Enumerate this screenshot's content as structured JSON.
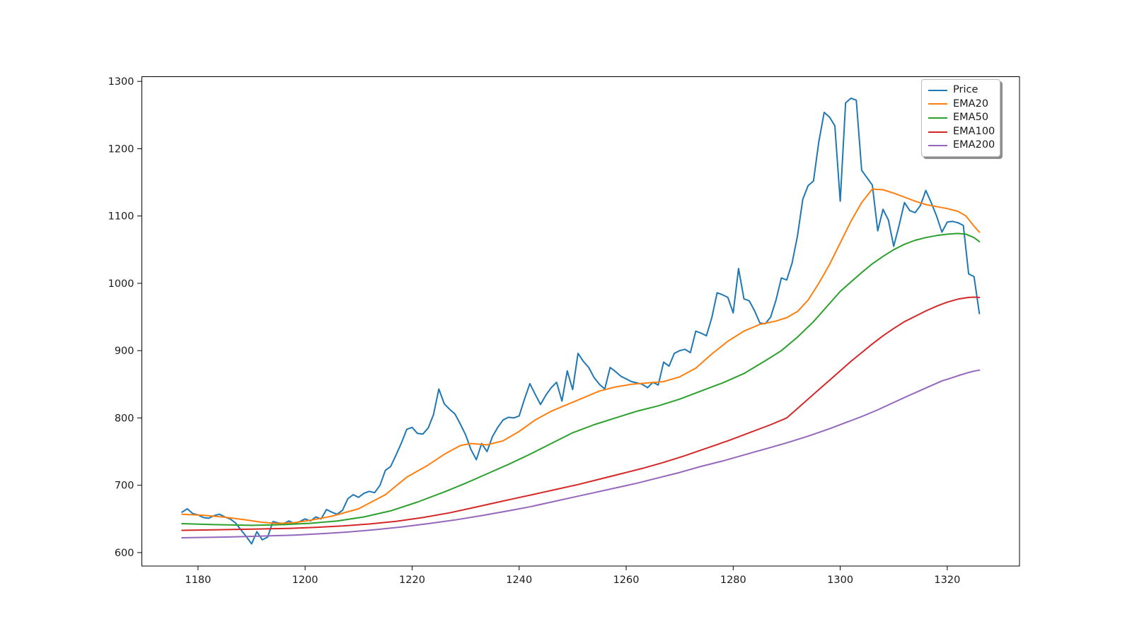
{
  "figure": {
    "background": "#ffffff",
    "frame_color": "#000000"
  },
  "legend": {
    "position": "upper right",
    "entries": [
      "Price",
      "EMA20",
      "EMA50",
      "EMA100",
      "EMA200"
    ]
  },
  "chart_data": {
    "type": "line",
    "title": "",
    "xlabel": "",
    "ylabel": "",
    "grid": false,
    "legend_position": "upper right",
    "xlim": [
      1169.5,
      1333.5
    ],
    "ylim": [
      580,
      1307
    ],
    "x_ticks": [
      1180,
      1200,
      1220,
      1240,
      1260,
      1280,
      1300,
      1320
    ],
    "y_ticks": [
      600,
      700,
      800,
      900,
      1000,
      1100,
      1200,
      1300
    ],
    "frame_color": "#000000",
    "series": [
      {
        "name": "Price",
        "color": "#1f77b4",
        "x_start": 1177,
        "x_step": 1,
        "y": [
          660,
          665,
          658,
          656,
          652,
          651,
          655,
          657,
          653,
          650,
          644,
          634,
          624,
          613,
          631,
          619,
          623,
          646,
          644,
          643,
          647,
          643,
          646,
          650,
          647,
          653,
          650,
          664,
          660,
          657,
          663,
          680,
          686,
          682,
          688,
          691,
          689,
          700,
          722,
          728,
          745,
          763,
          783,
          786,
          777,
          776,
          785,
          805,
          843,
          821,
          813,
          806,
          791,
          775,
          753,
          738,
          762,
          750,
          772,
          786,
          797,
          801,
          800,
          803,
          828,
          851,
          835,
          820,
          834,
          845,
          853,
          825,
          870,
          842,
          896,
          884,
          875,
          860,
          850,
          843,
          875,
          869,
          862,
          858,
          854,
          852,
          850,
          845,
          853,
          849,
          883,
          877,
          896,
          900,
          902,
          897,
          929,
          926,
          922,
          949,
          986,
          983,
          979,
          956,
          1022,
          977,
          974,
          959,
          941,
          940,
          950,
          975,
          1008,
          1005,
          1030,
          1070,
          1125,
          1145,
          1152,
          1210,
          1254,
          1247,
          1234,
          1122,
          1268,
          1275,
          1272,
          1168,
          1157,
          1146,
          1078,
          1110,
          1094,
          1055,
          1086,
          1120,
          1108,
          1105,
          1116,
          1138,
          1120,
          1100,
          1076,
          1091,
          1092,
          1090,
          1086,
          1014,
          1010,
          955
        ]
      },
      {
        "name": "EMA20",
        "color": "#ff7f0e",
        "x": [
          1177,
          1181,
          1185,
          1189,
          1192,
          1195,
          1198,
          1201,
          1205,
          1210,
          1215,
          1219,
          1223,
          1226,
          1229,
          1231,
          1234,
          1237,
          1240,
          1243,
          1246,
          1249,
          1252,
          1255,
          1258,
          1261,
          1264,
          1267,
          1270,
          1273,
          1276,
          1279,
          1282,
          1285,
          1288,
          1290,
          1292,
          1294,
          1296,
          1298,
          1300,
          1302,
          1304,
          1306,
          1308,
          1310,
          1312,
          1314,
          1316,
          1318,
          1320,
          1322,
          1323.5,
          1325,
          1326
        ],
        "y": [
          657,
          655.5,
          652.5,
          648.5,
          645,
          643.2,
          644.5,
          648,
          654,
          665,
          686,
          712,
          730,
          746,
          759,
          762,
          760,
          766,
          780,
          797,
          810,
          820,
          830,
          840,
          846,
          850,
          852,
          854,
          861,
          874,
          895,
          914,
          929,
          939,
          944,
          949,
          958,
          975,
          1000,
          1028,
          1060,
          1092,
          1120,
          1140,
          1139,
          1134,
          1128,
          1122,
          1117,
          1114,
          1111,
          1107,
          1100,
          1085,
          1076
        ]
      },
      {
        "name": "EMA50",
        "color": "#2ca02c",
        "x": [
          1177,
          1183,
          1190,
          1196,
          1201,
          1206,
          1211,
          1216,
          1221,
          1226,
          1230,
          1234,
          1238,
          1242,
          1246,
          1250,
          1254,
          1258,
          1262,
          1266,
          1270,
          1274,
          1278,
          1282,
          1286,
          1289,
          1292,
          1295,
          1298,
          1300,
          1302,
          1304,
          1306,
          1308,
          1310,
          1312,
          1314,
          1316,
          1318,
          1320,
          1322,
          1323.5,
          1325,
          1326
        ],
        "y": [
          643,
          641.5,
          640.5,
          641.5,
          643.5,
          647,
          653,
          662,
          675,
          690,
          703,
          717,
          731,
          746,
          762,
          778,
          790,
          800,
          810,
          818,
          828,
          840,
          852,
          866,
          885,
          900,
          920,
          943,
          970,
          988,
          1002,
          1016,
          1029,
          1040,
          1050,
          1058,
          1064,
          1068,
          1071,
          1073,
          1074,
          1073,
          1068,
          1062
        ]
      },
      {
        "name": "EMA100",
        "color": "#d62728",
        "x": [
          1177,
          1184,
          1191,
          1197,
          1202,
          1207,
          1212,
          1217,
          1222,
          1227,
          1231,
          1235,
          1239,
          1243,
          1247,
          1251,
          1255,
          1259,
          1263,
          1267,
          1271,
          1275,
          1279,
          1283,
          1287,
          1290,
          1292,
          1294,
          1296,
          1298,
          1300,
          1302,
          1304,
          1306,
          1308,
          1310,
          1312,
          1314,
          1316,
          1318,
          1320,
          1322,
          1324,
          1325,
          1326
        ],
        "y": [
          633,
          634,
          635,
          636,
          637.5,
          639.5,
          642.5,
          646.5,
          652,
          659,
          666,
          673,
          680,
          687,
          694,
          701,
          709,
          717,
          725,
          734,
          744,
          755,
          766,
          778,
          790,
          800,
          814,
          828,
          842,
          856,
          870,
          884,
          897,
          910,
          922,
          933,
          943,
          951,
          959,
          966,
          972,
          976.5,
          979,
          979.5,
          979
        ]
      },
      {
        "name": "EMA200",
        "color": "#9467bd",
        "x": [
          1177,
          1185,
          1192,
          1198,
          1203,
          1208,
          1213,
          1218,
          1223,
          1228,
          1233,
          1238,
          1242,
          1246,
          1250,
          1254,
          1258,
          1262,
          1266,
          1270,
          1274,
          1278,
          1282,
          1286,
          1290,
          1294,
          1298,
          1301,
          1304,
          1307,
          1310,
          1313,
          1315,
          1317,
          1319,
          1321,
          1322.5,
          1324,
          1325,
          1326
        ],
        "y": [
          622,
          623,
          624.5,
          626,
          628,
          630.5,
          634,
          638,
          643,
          648.5,
          655,
          662,
          668,
          675,
          682,
          689,
          696,
          703,
          711,
          719,
          728,
          736,
          745,
          754,
          763,
          773,
          784,
          793,
          802,
          812,
          823,
          834,
          841,
          848,
          855,
          860,
          864,
          867.5,
          869.5,
          871
        ]
      }
    ]
  }
}
